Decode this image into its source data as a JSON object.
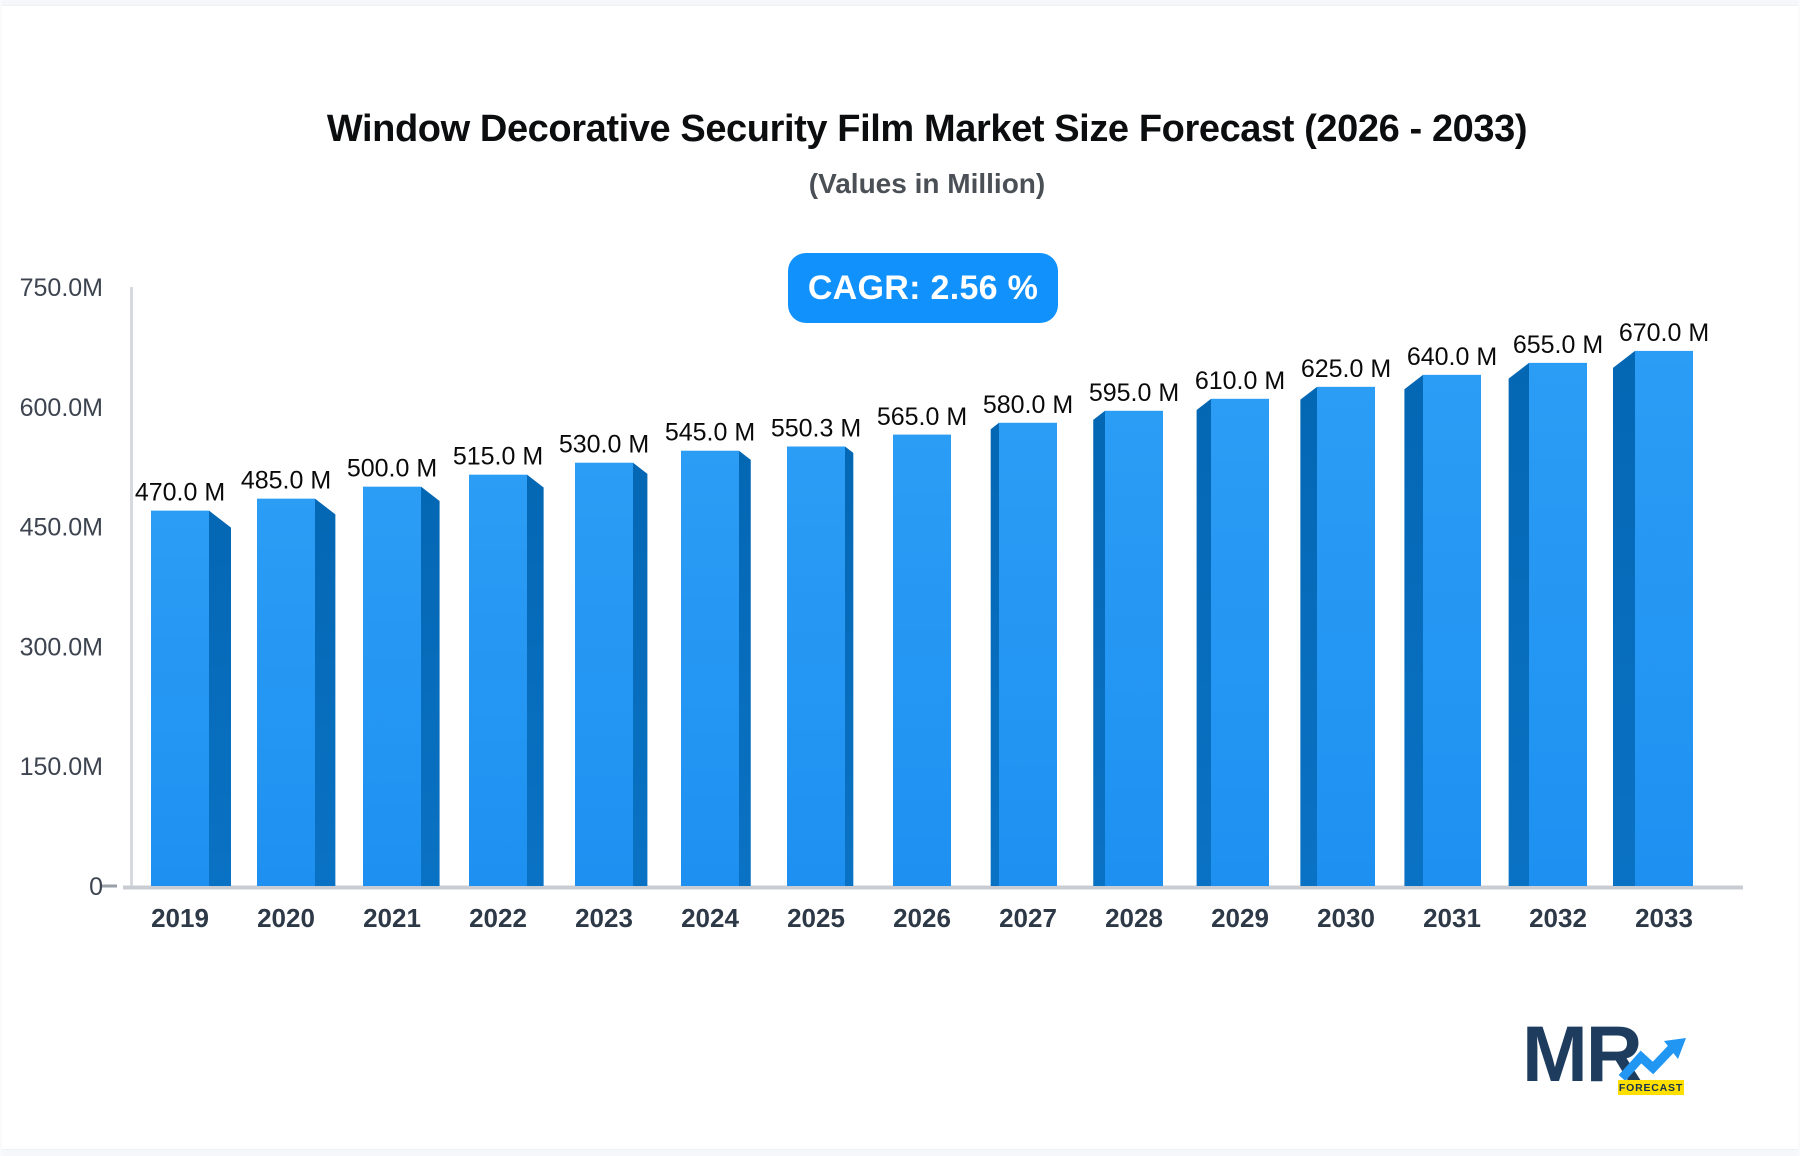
{
  "title": "Window Decorative Security Film Market Size Forecast (2026 - 2033)",
  "subtitle": "(Values in Million)",
  "badge": {
    "label": "CAGR: 2.56 %"
  },
  "logo": {
    "brand": "MR",
    "tagline": "FORECAST"
  },
  "colors": {
    "bar_front_top": "#2b9df5",
    "bar_front_bottom": "#1e90f1",
    "bar_side_top": "#0467b4",
    "bar_side_bottom": "#0a72c4",
    "badge_blue": "#1191fb",
    "axis_line": "#d6d9de",
    "baseline": "#c9cdd3",
    "tick_text": "#3d4450",
    "category_text": "#2e3947",
    "value_text": "#0a0a0a",
    "logo_navy": "#1d3c5e",
    "logo_yellow": "#ffdf00",
    "logo_arrow_blue": "#2196f3"
  },
  "chart_data": {
    "type": "bar",
    "title": "Window Decorative Security Film Market Size Forecast (2026 - 2033)",
    "subtitle": "(Values in Million)",
    "annotation": "CAGR: 2.56 %",
    "unit": "Million",
    "categories": [
      "2019",
      "2020",
      "2021",
      "2022",
      "2023",
      "2024",
      "2025",
      "2026",
      "2027",
      "2028",
      "2029",
      "2030",
      "2031",
      "2032",
      "2033"
    ],
    "values": [
      470.0,
      485.0,
      500.0,
      515.0,
      530.0,
      545.0,
      550.3,
      565.0,
      580.0,
      595.0,
      610.0,
      625.0,
      640.0,
      655.0,
      670.0
    ],
    "bar_labels": [
      "470.0 M",
      "485.0 M",
      "500.0 M",
      "515.0 M",
      "530.0 M",
      "545.0 M",
      "550.3 M",
      "565.0 M",
      "580.0 M",
      "595.0 M",
      "610.0 M",
      "625.0 M",
      "640.0 M",
      "655.0 M",
      "670.0 M"
    ],
    "xlabel": "",
    "ylabel": "",
    "ylim": [
      0,
      750
    ],
    "yticks": [
      0,
      150,
      300,
      450,
      600,
      750
    ],
    "ytick_labels": [
      "0",
      "150.0M",
      "300.0M",
      "450.0M",
      "600.0M",
      "750.0M"
    ],
    "grid": false,
    "legend": false,
    "style": "3d-column"
  }
}
